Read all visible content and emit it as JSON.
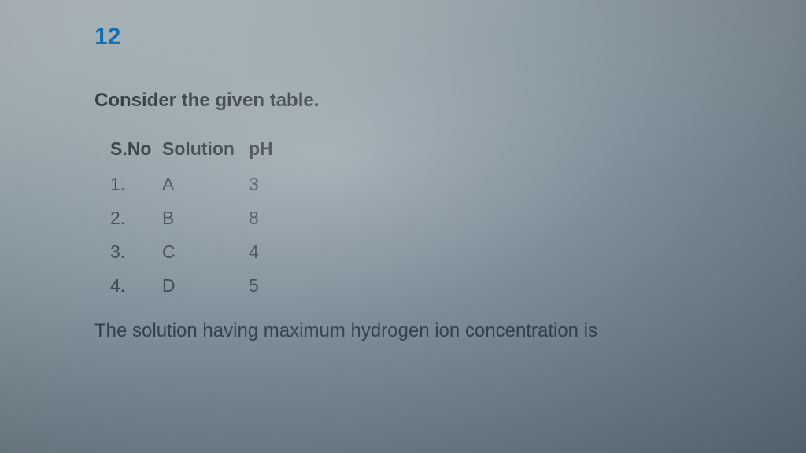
{
  "question_number": "12",
  "prompt_text": "Consider the given table.",
  "question_number_color": "#0f6fb0",
  "table": {
    "columns": [
      "S.No",
      "Solution",
      "pH"
    ],
    "rows": [
      {
        "sno": "1.",
        "solution": "A",
        "ph": "3"
      },
      {
        "sno": "2.",
        "solution": "B",
        "ph": "8"
      },
      {
        "sno": "3.",
        "solution": "C",
        "ph": "4"
      },
      {
        "sno": "4.",
        "solution": "D",
        "ph": "5"
      }
    ],
    "header_fontweight": "700",
    "row_fontsize": 23
  },
  "stem_text": "The solution having maximum hydrogen ion concentration is",
  "colors": {
    "text": "#2a343c",
    "accent": "#0f6fb0"
  }
}
